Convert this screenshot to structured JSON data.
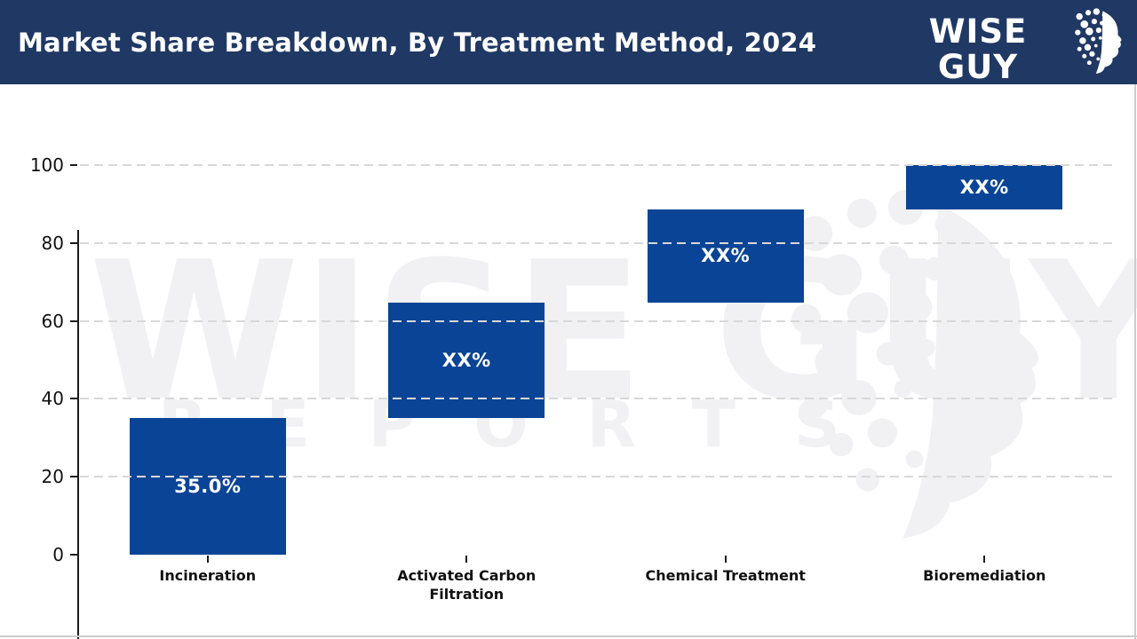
{
  "header": {
    "title": "Market Share Breakdown, By Treatment Method, 2024",
    "logo": {
      "line1": "WISE GUY",
      "line2": "REPORTS"
    }
  },
  "watermark": {
    "line1": "WISE GUY",
    "line2": "REPORTS"
  },
  "colors": {
    "header_bg": "#203864",
    "bar_blue": "#0a4496",
    "grid": "#d8d8d8",
    "axis": "#1a1a1a",
    "watermark": "#f1f1f4",
    "edge_line": "#cccccc"
  },
  "chart_data": {
    "type": "bar",
    "subtype": "waterfall",
    "title": "Market Share Breakdown, By Treatment Method, 2024",
    "xlabel": "",
    "ylabel": "",
    "ylim": [
      0,
      105
    ],
    "yticks": [
      0,
      20,
      40,
      60,
      80,
      100
    ],
    "grid": "dashed-horizontal, drawn over bars",
    "legend": "none",
    "categories": [
      "Incineration",
      "Activated Carbon\nFiltration",
      "Chemical Treatment",
      "Bioremediation"
    ],
    "bars": [
      {
        "category": "Incineration",
        "start": 0,
        "end": 35.0,
        "value": 35.0,
        "label": "35.0%"
      },
      {
        "category": "Activated Carbon Filtration",
        "start": 35.0,
        "end": 64.7,
        "value": 29.7,
        "label": "XX%"
      },
      {
        "category": "Chemical Treatment",
        "start": 64.7,
        "end": 88.6,
        "value": 23.9,
        "label": "XX%"
      },
      {
        "category": "Bioremediation",
        "start": 88.6,
        "end": 100.0,
        "value": 11.4,
        "label": "XX%"
      }
    ]
  }
}
